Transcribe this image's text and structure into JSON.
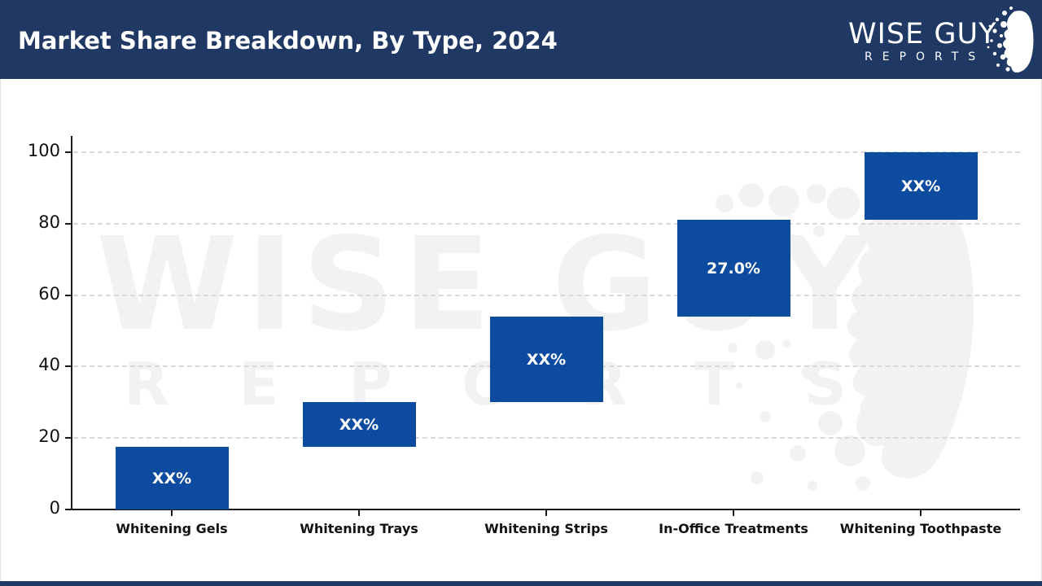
{
  "header": {
    "title": "Market Share Breakdown, By Type, 2024",
    "logo_line1": "WISE GUY",
    "logo_line2": "REPORTS",
    "bg_color": "#203864"
  },
  "watermark": {
    "line1": "WISE GUY",
    "line2": "REPORTS"
  },
  "chart_data": {
    "type": "bar",
    "subtype": "waterfall",
    "title": "Market Share Breakdown, By Type, 2024",
    "categories": [
      "Whitening Gels",
      "Whitening Trays",
      "Whitening Strips",
      "In-Office Treatments",
      "Whitening Toothpaste"
    ],
    "segments": [
      {
        "category": "Whitening Gels",
        "start": 0,
        "end": 17.5,
        "label": "XX%"
      },
      {
        "category": "Whitening Trays",
        "start": 17.5,
        "end": 30,
        "label": "XX%"
      },
      {
        "category": "Whitening Strips",
        "start": 30,
        "end": 54,
        "label": "XX%"
      },
      {
        "category": "In-Office Treatments",
        "start": 54,
        "end": 81,
        "label": "27.0%"
      },
      {
        "category": "Whitening Toothpaste",
        "start": 81,
        "end": 100,
        "label": "XX%"
      }
    ],
    "ylim": [
      0,
      100
    ],
    "yticks": [
      0,
      20,
      40,
      60,
      80,
      100
    ],
    "ylabel": "",
    "xlabel": "",
    "bar_color": "#0c4ba0",
    "grid": "horizontal-dashed",
    "gridline_color": "#d9d9d9",
    "legend": "none"
  }
}
